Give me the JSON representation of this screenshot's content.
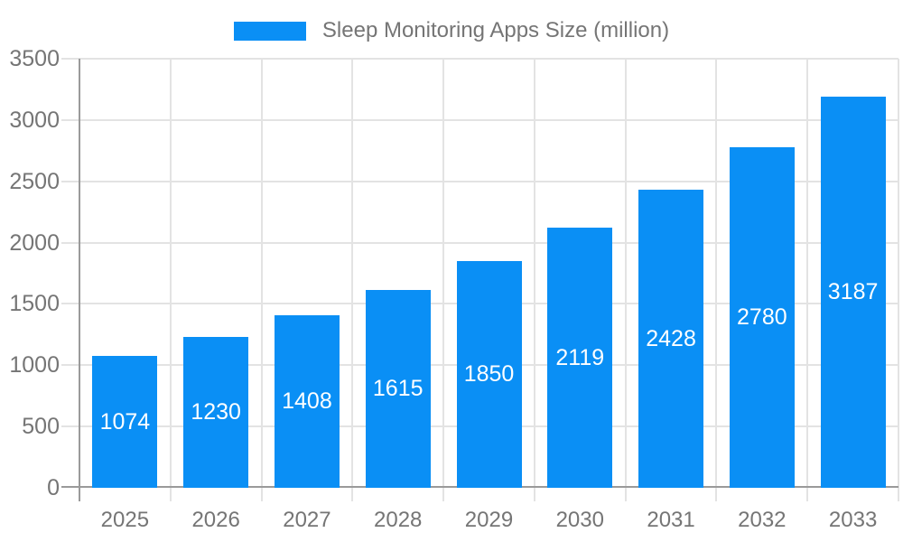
{
  "legend": {
    "label": "Sleep Monitoring Apps Size (million)"
  },
  "chart_data": {
    "type": "bar",
    "title": "Sleep Monitoring Apps Size (million)",
    "categories": [
      "2025",
      "2026",
      "2027",
      "2028",
      "2029",
      "2030",
      "2031",
      "2032",
      "2033"
    ],
    "values": [
      1074,
      1230,
      1408,
      1615,
      1850,
      2119,
      2428,
      2780,
      3187
    ],
    "xlabel": "",
    "ylabel": "",
    "ylim": [
      0,
      3500
    ],
    "yticks": [
      0,
      500,
      1000,
      1500,
      2000,
      2500,
      3000,
      3500
    ],
    "grid": true,
    "legend_position": "top",
    "bar_value_labels_visible": true,
    "colors": {
      "bar": "#0a8ff5",
      "grid": "#e3e3e3",
      "axis": "#9a9a9a",
      "text": "#757575",
      "value_label": "#ffffff",
      "background": "#ffffff"
    }
  }
}
